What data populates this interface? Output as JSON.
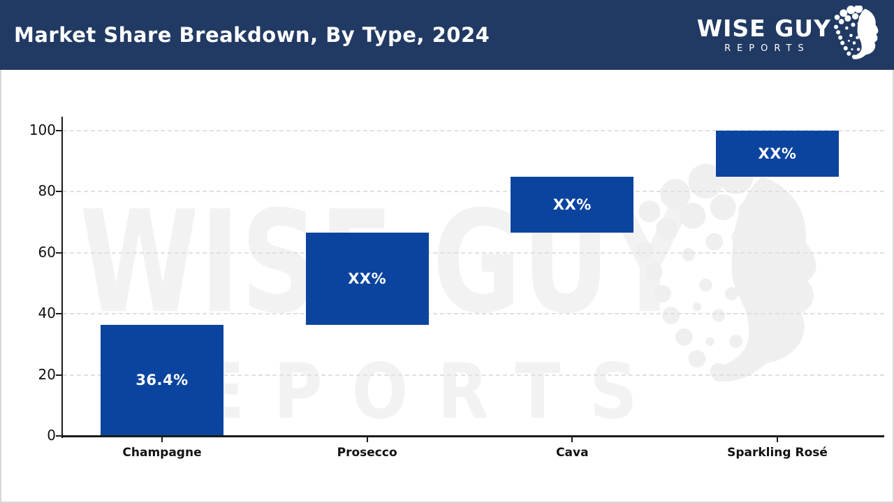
{
  "header": {
    "title": "Market Share Breakdown, By Type, 2024",
    "bg_color": "#213a63"
  },
  "logo": {
    "line1": "WISE GUY",
    "line2": "REPORTS"
  },
  "watermark": {
    "line1": "WISE GUY",
    "line2": "REPORTS"
  },
  "chart_data": {
    "type": "bar",
    "subtype": "floating-waterfall",
    "title": "Market Share Breakdown, By Type, 2024",
    "categories": [
      "Champagne",
      "Prosecco",
      "Cava",
      "Sparkling Rosé"
    ],
    "series": [
      {
        "name": "Market share",
        "segments": [
          {
            "category": "Champagne",
            "start": 0,
            "end": 36.4,
            "label": "36.4%"
          },
          {
            "category": "Prosecco",
            "start": 36.4,
            "end": 66.6,
            "label": "XX%"
          },
          {
            "category": "Cava",
            "start": 66.6,
            "end": 84.9,
            "label": "XX%"
          },
          {
            "category": "Sparkling Rosé",
            "start": 84.9,
            "end": 100,
            "label": "XX%"
          }
        ]
      }
    ],
    "ylim": [
      0,
      100
    ],
    "yticks": [
      0,
      20,
      40,
      60,
      80,
      100
    ],
    "xlabel": "",
    "ylabel": "",
    "grid": "horizontal-dashed",
    "legend": "none",
    "bar_color": "#0b449e",
    "axis_color": "#1a1a1a",
    "grid_color": "#e0e0e0",
    "bar_label_color": "#ffffff"
  }
}
